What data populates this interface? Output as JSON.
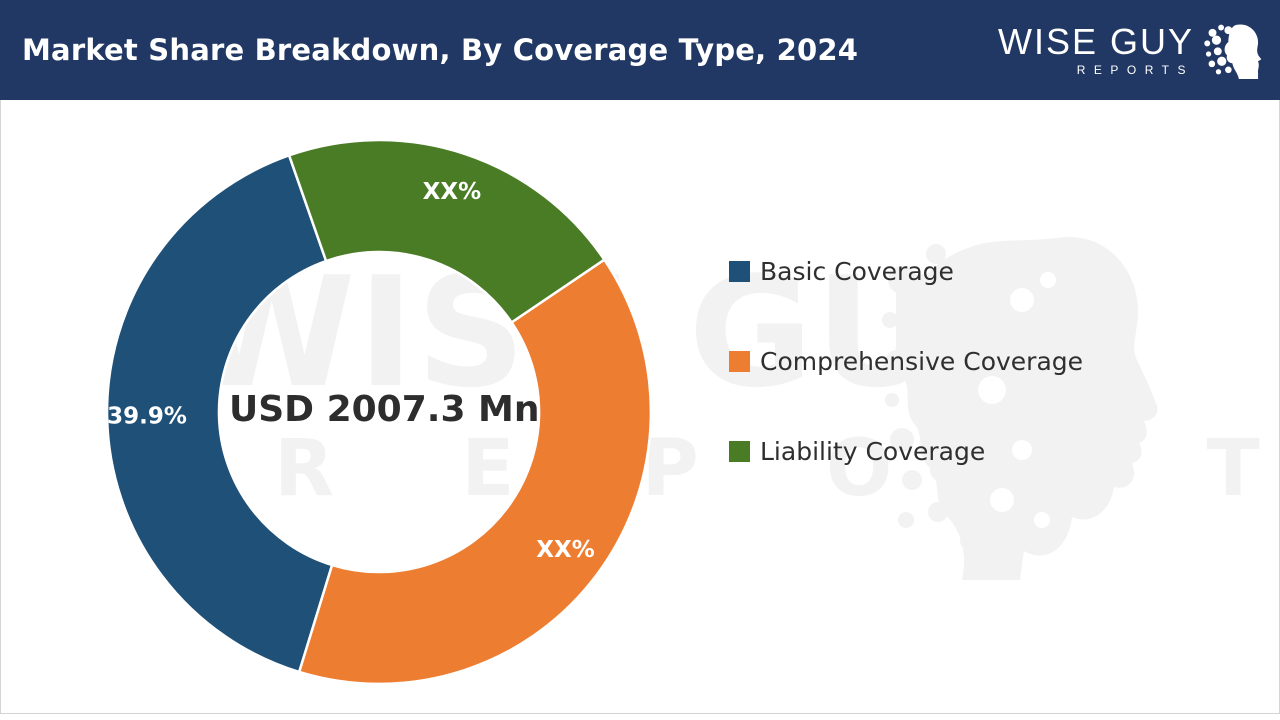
{
  "header": {
    "title": "Market Share Breakdown, By Coverage Type, 2024",
    "logo": {
      "line1": "WISE GUY",
      "line2": "REPORTS"
    }
  },
  "watermark": {
    "line1": "WISE GUY",
    "line2": "R E P O R T S"
  },
  "colors": {
    "header_bar": "#213864",
    "basic_blue": "#1F5078",
    "comprehensive_orange": "#ED7D31",
    "liability_green": "#4A7C26",
    "watermark_gray": "#f2f2f2"
  },
  "chart_data": {
    "type": "pie",
    "subtype": "donut",
    "title": "Market Share Breakdown, By Coverage Type, 2024",
    "center_text": "USD 2007.3 Mn",
    "start_angle_deg": 109.3,
    "direction": "counterclockwise",
    "legend_position": "right",
    "series": [
      {
        "name": "Basic Coverage",
        "value_pct": 39.9,
        "label": "39.9%",
        "color": "#1F5078"
      },
      {
        "name": "Comprehensive Coverage",
        "value_pct": 39.2,
        "label": "XX%",
        "color": "#ED7D31"
      },
      {
        "name": "Liability Coverage",
        "value_pct": 20.9,
        "label": "XX%",
        "color": "#4A7C26"
      }
    ]
  }
}
